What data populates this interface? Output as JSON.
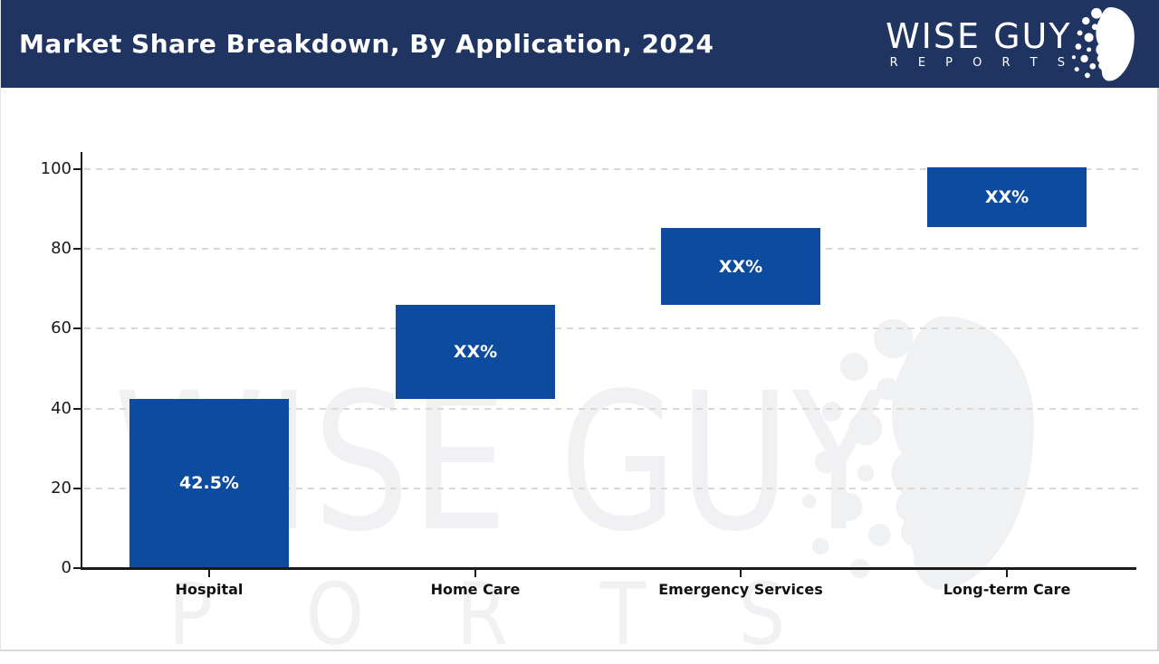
{
  "header": {
    "title": "Market Share Breakdown, By Application, 2024",
    "logo_line1": "WISE GUY",
    "logo_line2": "R E P O R T S"
  },
  "watermark": {
    "line1": "WISE GUY",
    "line2": "P O R T S"
  },
  "colors": {
    "header_bg": "#203461",
    "bar_fill": "#0d4b9e",
    "bar_label": "#ffffff",
    "gridline": "#d9d9d9",
    "axis": "#1a1a1a",
    "watermark": "#f1f1f3",
    "title_text": "#ffffff"
  },
  "chart_data": {
    "type": "bar",
    "subtype": "waterfall",
    "title": "Market Share Breakdown, By Application, 2024",
    "xlabel": "",
    "ylabel": "",
    "ylim": [
      0,
      105
    ],
    "yticks": [
      0,
      20,
      40,
      60,
      80,
      100
    ],
    "grid": "horizontal dashed",
    "legend": "none",
    "categories": [
      "Hospital",
      "Home Care",
      "Emergency Services",
      "Long-term Care"
    ],
    "segments": [
      {
        "category": "Hospital",
        "start": 0,
        "end": 42.5,
        "value_label": "42.5%"
      },
      {
        "category": "Home Care",
        "start": 42.5,
        "end": 66,
        "value_label": "XX%"
      },
      {
        "category": "Emergency Services",
        "start": 66,
        "end": 85.2,
        "value_label": "XX%"
      },
      {
        "category": "Long-term Care",
        "start": 85.4,
        "end": 100.4,
        "value_label": "XX%"
      }
    ]
  }
}
